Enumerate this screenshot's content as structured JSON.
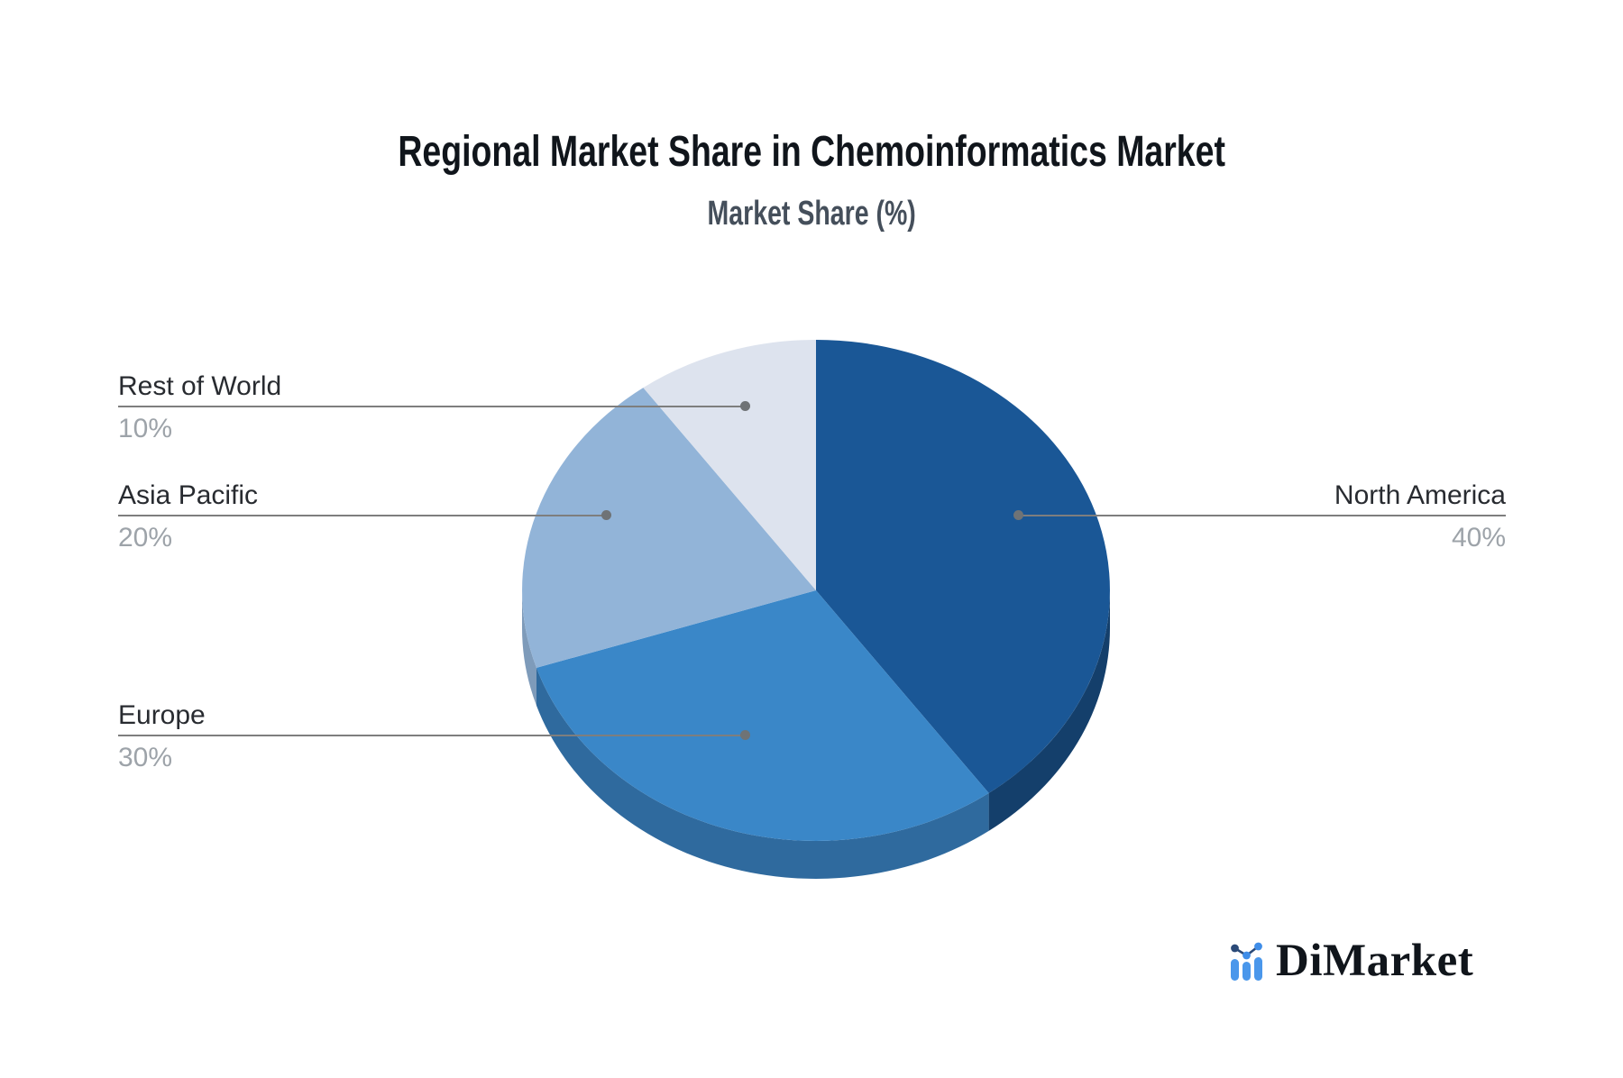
{
  "chart_data": {
    "type": "pie",
    "title": "Regional Market Share in Chemoinformatics Market",
    "subtitle": "Market Share (%)",
    "unit": "%",
    "projection": "3d",
    "start_angle": "top",
    "direction": "clockwise",
    "legend_position": "callout-labels",
    "slices": [
      {
        "label": "North America",
        "value": 40,
        "display": "40%",
        "color": "#1A5796",
        "side_color": "#143F6B"
      },
      {
        "label": "Europe",
        "value": 30,
        "display": "30%",
        "color": "#3A87C8",
        "side_color": "#2F6A9E"
      },
      {
        "label": "Asia Pacific",
        "value": 20,
        "display": "20%",
        "color": "#92B4D8",
        "side_color": "#7E9BBA"
      },
      {
        "label": "Rest of World",
        "value": 10,
        "display": "10%",
        "color": "#DDE3EE"
      }
    ],
    "leader_line_color": "#7E7E7E",
    "label_color": "#282B30",
    "value_color": "#9DA3A9"
  },
  "branding": {
    "name": "DiMarket",
    "icon": "bar-line-chart-icon",
    "icon_bar_color": "#4A97EB",
    "icon_line_color": "#2B4A78",
    "icon_dot_color": "#3F8DE8"
  }
}
